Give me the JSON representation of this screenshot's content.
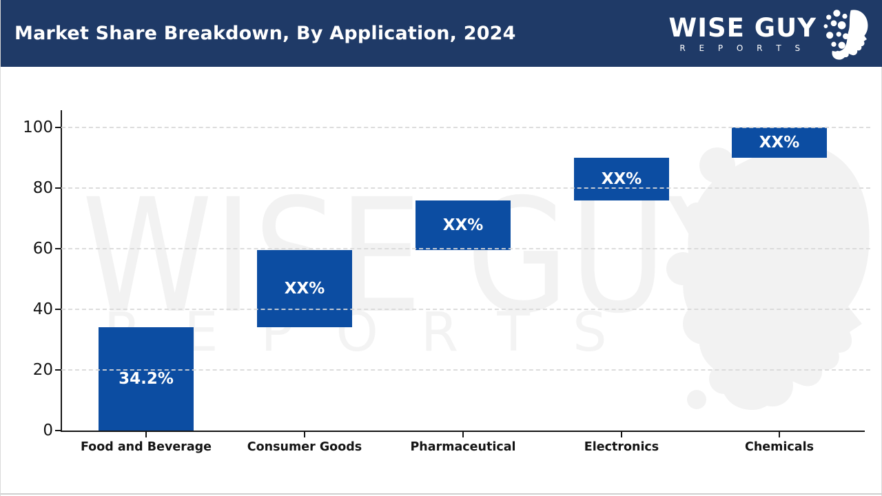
{
  "header": {
    "title": "Market Share Breakdown, By Application, 2024",
    "logo": {
      "wordmark": "WISE GUY",
      "sub": "R E P O R T S"
    }
  },
  "watermark": {
    "big": "WISE GUY",
    "sub": "REPORTS"
  },
  "colors": {
    "header_bg": "#1f3a67",
    "bar": "#0c4da2",
    "axis": "#141414",
    "grid": "#d8d8d8",
    "bar_label": "#ffffff",
    "watermark": "#f2f2f2"
  },
  "chart_data": {
    "type": "bar",
    "variant": "waterfall",
    "title": "Market Share Breakdown, By Application, 2024",
    "xlabel": "",
    "ylabel": "",
    "ylim": [
      0,
      105.7
    ],
    "yticks": [
      0,
      20,
      40,
      60,
      80,
      100
    ],
    "grid": "horizontal-dashed",
    "legend": "none",
    "categories": [
      "Food and Beverage",
      "Consumer Goods",
      "Pharmaceutical",
      "Electronics",
      "Chemicals"
    ],
    "segments": [
      {
        "category": "Food and Beverage",
        "start": 0,
        "end": 34.2,
        "value": 34.2,
        "label": "34.2%"
      },
      {
        "category": "Consumer Goods",
        "start": 34.2,
        "end": 59.5,
        "value": 25.3,
        "label": "XX%"
      },
      {
        "category": "Pharmaceutical",
        "start": 59.5,
        "end": 75.9,
        "value": 16.4,
        "label": "XX%"
      },
      {
        "category": "Electronics",
        "start": 75.9,
        "end": 90.0,
        "value": 14.1,
        "label": "XX%"
      },
      {
        "category": "Chemicals",
        "start": 90.0,
        "end": 100.0,
        "value": 10.0,
        "label": "XX%"
      }
    ]
  }
}
